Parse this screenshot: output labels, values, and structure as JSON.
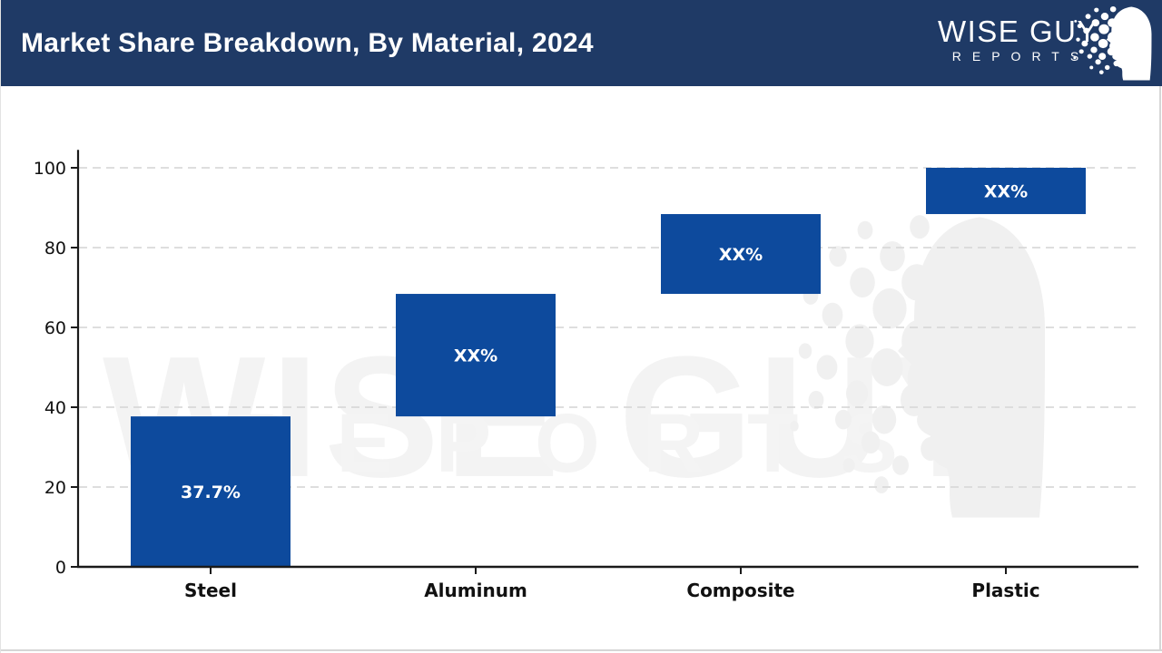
{
  "header": {
    "title": "Market Share Breakdown, By Material, 2024",
    "logo": {
      "name": "WISE GUY",
      "sub": "REPORTS"
    }
  },
  "watermark": {
    "line1": "WISE GUY",
    "line2": "REPORTS"
  },
  "colors": {
    "header_bg": "#1F3A66",
    "bar_blue": "#0D4A9D",
    "grid": "#D9D9D9",
    "axis": "#1A1A1A",
    "bar_label": "#FFFFFF"
  },
  "chart_data": {
    "type": "bar",
    "subtype": "waterfall",
    "title": "Market Share Breakdown, By Material, 2024",
    "categories": [
      "Steel",
      "Aluminum",
      "Composite",
      "Plastic"
    ],
    "segments": [
      {
        "category": "Steel",
        "start": 0,
        "end": 37.7,
        "label": "37.7%"
      },
      {
        "category": "Aluminum",
        "start": 37.7,
        "end": 68.4,
        "label": "XX%"
      },
      {
        "category": "Composite",
        "start": 68.4,
        "end": 88.4,
        "label": "XX%"
      },
      {
        "category": "Plastic",
        "start": 88.4,
        "end": 100,
        "label": "XX%"
      }
    ],
    "yticks": [
      0,
      20,
      40,
      60,
      80,
      100
    ],
    "ylim": [
      0,
      104.5
    ],
    "xlabel": "",
    "ylabel": "",
    "grid": "horizontal-dashed",
    "legend": "none"
  }
}
